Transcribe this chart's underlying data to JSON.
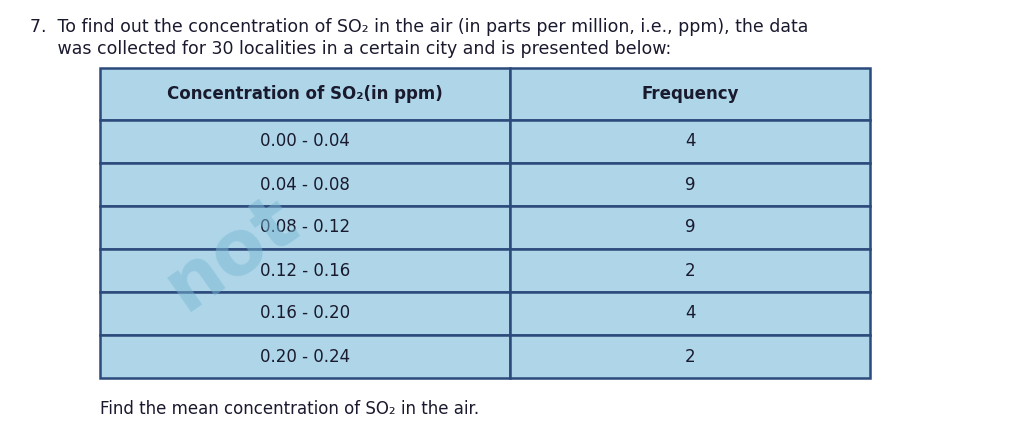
{
  "title_line1": "7.  To find out the concentration of SO₂ in the air (in parts per million, i.e., ppm), the data",
  "title_line2": "     was collected for 30 localities in a certain city and is presented below:",
  "header_col1": "Concentration of SO₂(in ppm)",
  "header_col2": "Frequency",
  "rows": [
    [
      "0.00 - 0.04",
      "4"
    ],
    [
      "0.04 - 0.08",
      "9"
    ],
    [
      "0.08 - 0.12",
      "9"
    ],
    [
      "0.12 - 0.16",
      "2"
    ],
    [
      "0.16 - 0.20",
      "4"
    ],
    [
      "0.20 - 0.24",
      "2"
    ]
  ],
  "footer": "Find the mean concentration of SO₂ in the air.",
  "bg_color": "#aed6e8",
  "border_color": "#2c4a7c",
  "text_color": "#1a1a2e",
  "watermark_text": "not",
  "page_bg": "#ffffff",
  "font_size_title": 12.5,
  "font_size_header": 12.0,
  "font_size_body": 12.0,
  "font_size_footer": 12.0,
  "watermark_color": "#7ab8d4",
  "watermark_alpha": 0.5,
  "watermark_rotation": 35,
  "watermark_fontsize": 55
}
